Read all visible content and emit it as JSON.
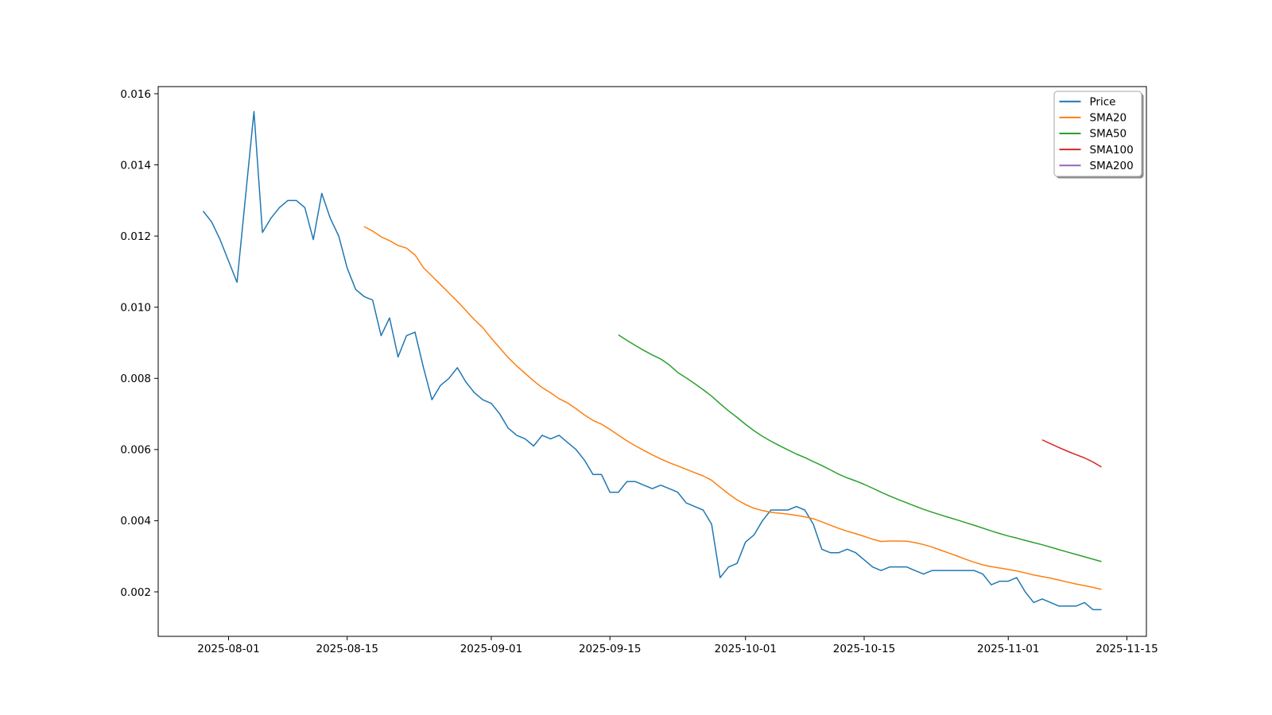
{
  "figure": {
    "background": "#ffffff",
    "kind": "matplotlib-line-chart"
  },
  "chart_data": {
    "type": "line",
    "title": "",
    "xlabel": "",
    "ylabel": "",
    "grid": false,
    "x_start_date": "2025-07-29",
    "x_frequency_days": 1,
    "xlim_days": [
      -5.3,
      111.3
    ],
    "ylim": [
      0.00075,
      0.0162
    ],
    "x_ticks": [
      {
        "label": "2025-08-01",
        "day": 3
      },
      {
        "label": "2025-08-15",
        "day": 17
      },
      {
        "label": "2025-09-01",
        "day": 34
      },
      {
        "label": "2025-09-15",
        "day": 48
      },
      {
        "label": "2025-10-01",
        "day": 64
      },
      {
        "label": "2025-10-15",
        "day": 78
      },
      {
        "label": "2025-11-01",
        "day": 95
      },
      {
        "label": "2025-11-15",
        "day": 109
      }
    ],
    "y_ticks": [
      {
        "label": "0.002",
        "value": 0.002
      },
      {
        "label": "0.004",
        "value": 0.004
      },
      {
        "label": "0.006",
        "value": 0.006
      },
      {
        "label": "0.008",
        "value": 0.008
      },
      {
        "label": "0.010",
        "value": 0.01
      },
      {
        "label": "0.012",
        "value": 0.012
      },
      {
        "label": "0.014",
        "value": 0.014
      },
      {
        "label": "0.016",
        "value": 0.016
      }
    ],
    "legend": {
      "position": "upper right",
      "entries": [
        "Price",
        "SMA20",
        "SMA50",
        "SMA100",
        "SMA200"
      ]
    },
    "series": [
      {
        "name": "Price",
        "color": "#1f77b4",
        "kind": "data",
        "values": [
          0.0127,
          0.0124,
          0.0119,
          0.0113,
          0.0107,
          0.0131,
          0.0155,
          0.0121,
          0.0125,
          0.0128,
          0.013,
          0.013,
          0.0128,
          0.0119,
          0.0132,
          0.0125,
          0.012,
          0.0111,
          0.0105,
          0.0103,
          0.0102,
          0.0092,
          0.0097,
          0.0086,
          0.0092,
          0.0093,
          0.0083,
          0.0074,
          0.0078,
          0.008,
          0.0083,
          0.0079,
          0.0076,
          0.0074,
          0.0073,
          0.007,
          0.0066,
          0.0064,
          0.0063,
          0.0061,
          0.0064,
          0.0063,
          0.0064,
          0.0062,
          0.006,
          0.0057,
          0.0053,
          0.0053,
          0.0048,
          0.0048,
          0.0051,
          0.0051,
          0.005,
          0.0049,
          0.005,
          0.0049,
          0.0048,
          0.0045,
          0.0044,
          0.0043,
          0.0039,
          0.0024,
          0.0027,
          0.0028,
          0.0034,
          0.0036,
          0.004,
          0.0043,
          0.0043,
          0.0043,
          0.0044,
          0.0043,
          0.0039,
          0.0032,
          0.0031,
          0.0031,
          0.0032,
          0.0031,
          0.0029,
          0.0027,
          0.0026,
          0.0027,
          0.0027,
          0.0027,
          0.0026,
          0.0025,
          0.0026,
          0.0026,
          0.0026,
          0.0026,
          0.0026,
          0.0026,
          0.0025,
          0.0022,
          0.0023,
          0.0023,
          0.0024,
          0.002,
          0.0017,
          0.0018,
          0.0017,
          0.0016,
          0.0016,
          0.0016,
          0.0017,
          0.0015,
          0.0015
        ]
      },
      {
        "name": "SMA20",
        "color": "#ff7f0e",
        "kind": "sma",
        "window": 20
      },
      {
        "name": "SMA50",
        "color": "#2ca02c",
        "kind": "sma",
        "window": 50
      },
      {
        "name": "SMA100",
        "color": "#d62728",
        "kind": "sma",
        "window": 100
      },
      {
        "name": "SMA200",
        "color": "#9467bd",
        "kind": "sma",
        "window": 200
      }
    ]
  }
}
